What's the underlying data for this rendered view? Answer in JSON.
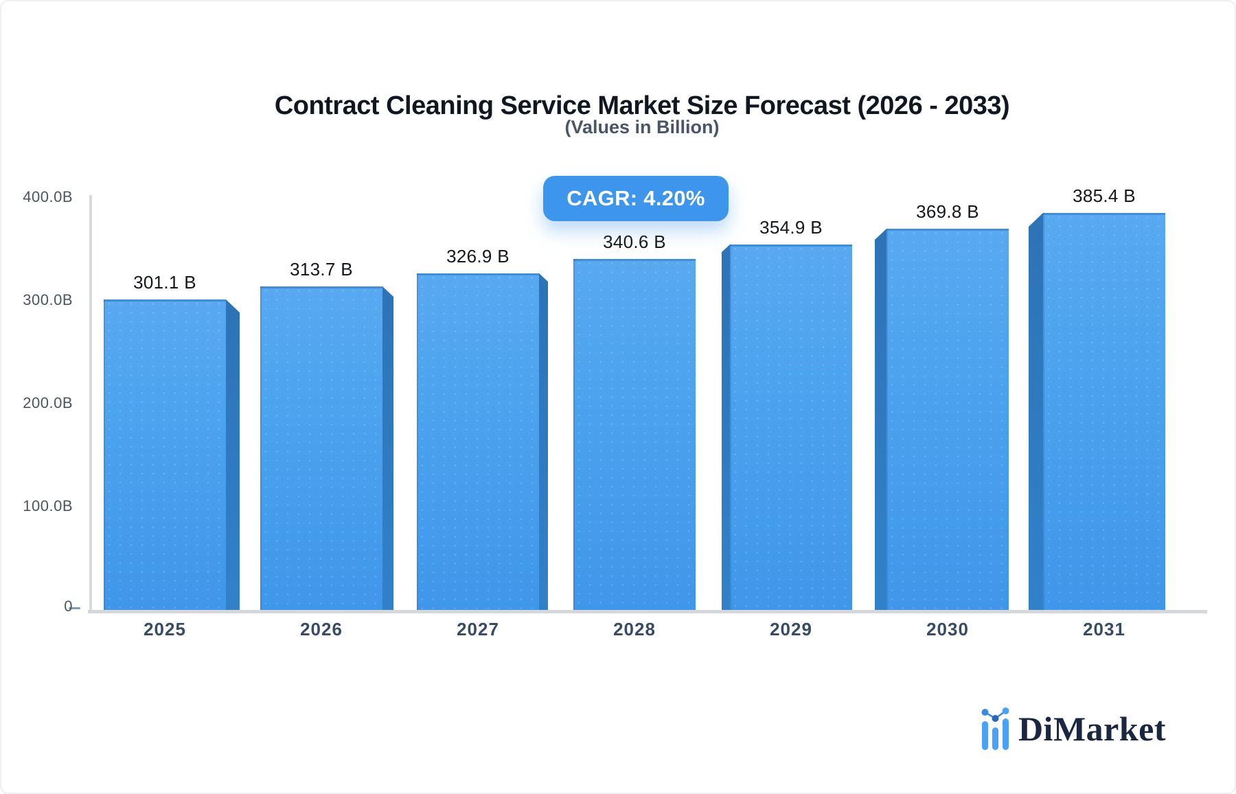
{
  "title": "Contract Cleaning Service Market Size Forecast (2026 - 2033)",
  "subtitle": "(Values in Billion)",
  "cagr_badge": "CAGR: 4.20%",
  "logo": {
    "text": "DiMarket",
    "icon": "dimarket-bar-chart-icon"
  },
  "colors": {
    "bar_face": "#49A1EF",
    "bar_face_light": "#58A9F0",
    "bar_face_deep": "#4097EA",
    "bar_side": "#2F7ABE",
    "badge_background": "#3D96EC",
    "badge_text": "#FFFFFF",
    "axis_line": "#D6DADE",
    "title_text": "#101721",
    "subtitle_text": "#4A5568",
    "y_tick_text": "#4B5563",
    "year_text": "#374A66",
    "value_text": "#14171C",
    "logo_text": "#1B2640",
    "logo_icon_light_blue": "#4BA2F4",
    "logo_icon_dark_blue": "#2A66B8"
  },
  "chart_data": {
    "type": "bar",
    "title": "Contract Cleaning Service Market Size Forecast (2026 - 2033)",
    "subtitle": "(Values in Billion)",
    "annotation": "CAGR: 4.20%",
    "categories": [
      "2025",
      "2026",
      "2027",
      "2028",
      "2029",
      "2030",
      "2031"
    ],
    "values": [
      301.1,
      313.7,
      326.9,
      340.6,
      354.9,
      369.8,
      385.4
    ],
    "bar_labels": [
      "301.1 B",
      "313.7 B",
      "326.9 B",
      "340.6 B",
      "354.9 B",
      "369.8 B",
      "385.4 B"
    ],
    "unit": "Billion",
    "xlabel": "",
    "ylabel": "",
    "ylim": [
      0,
      400
    ],
    "y_ticks": [
      {
        "label": "400.0B",
        "value": 400
      },
      {
        "label": "300.0B",
        "value": 300
      },
      {
        "label": "200.0B",
        "value": 200
      },
      {
        "label": "100.0B",
        "value": 100
      },
      {
        "label": "0",
        "value": 0
      }
    ],
    "grid": false,
    "legend": null,
    "style": "3d-perspective-bars, center vanishing point"
  }
}
